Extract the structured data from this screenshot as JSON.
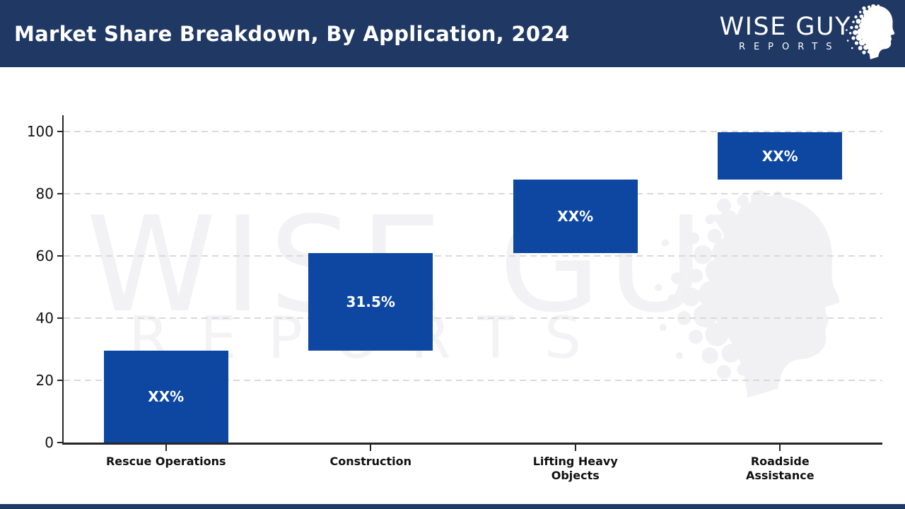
{
  "header": {
    "background": "#1f3864",
    "title": "Market Share Breakdown, By Application, 2024",
    "logo": {
      "wordmark": "WISE GUY",
      "subtext": "REPORTS"
    }
  },
  "watermark": {
    "wordmark": "WISE GUY",
    "subtext": "REPORTS"
  },
  "chart_data": {
    "type": "bar",
    "subtype": "floating-waterfall",
    "title": "Market Share Breakdown, By Application, 2024",
    "categories": [
      "Rescue Operations",
      "Construction",
      "Lifting Heavy Objects",
      "Roadside Assistance"
    ],
    "categories_display": [
      "Rescue Operations",
      "Construction",
      "Lifting Heavy\nObjects",
      "Roadside\nAssistance"
    ],
    "series": [
      {
        "name": "Market share (%)",
        "segments": [
          {
            "category": "Rescue Operations",
            "start": 0,
            "end": 29.4,
            "label": "XX%"
          },
          {
            "category": "Construction",
            "start": 29.4,
            "end": 60.9,
            "label": "31.5%"
          },
          {
            "category": "Lifting Heavy Objects",
            "start": 60.9,
            "end": 84.4,
            "label": "XX%"
          },
          {
            "category": "Roadside Assistance",
            "start": 84.4,
            "end": 99.7,
            "label": "XX%"
          }
        ]
      }
    ],
    "ylim": [
      0,
      105
    ],
    "yticks": [
      0,
      20,
      40,
      60,
      80,
      100
    ],
    "grid": {
      "horizontal": true,
      "style": "dashed"
    },
    "legend": "none",
    "bar_color": "#0d47a1",
    "bar_label_color": "#ffffff"
  },
  "footer": {
    "background": "#1f3864"
  }
}
